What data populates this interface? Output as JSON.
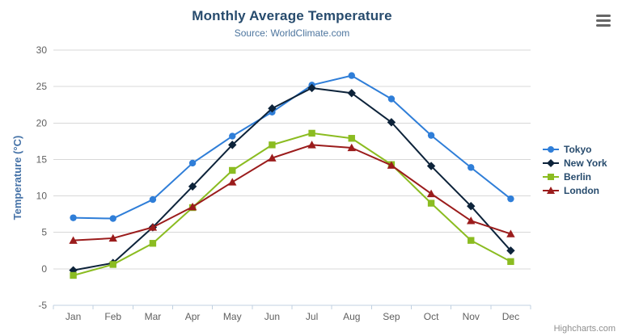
{
  "chart_data": {
    "type": "line",
    "title": "Monthly Average Temperature",
    "subtitle": "Source: WorldClimate.com",
    "xlabel": "",
    "ylabel": "Temperature (°C)",
    "categories": [
      "Jan",
      "Feb",
      "Mar",
      "Apr",
      "May",
      "Jun",
      "Jul",
      "Aug",
      "Sep",
      "Oct",
      "Nov",
      "Dec"
    ],
    "ylim": [
      -5,
      30
    ],
    "yticks": [
      -5,
      0,
      5,
      10,
      15,
      20,
      25,
      30
    ],
    "grid": "horizontal",
    "legend_position": "right",
    "series": [
      {
        "name": "Tokyo",
        "color": "#2f7ed8",
        "marker": "circle",
        "values": [
          7.0,
          6.9,
          9.5,
          14.5,
          18.2,
          21.5,
          25.2,
          26.5,
          23.3,
          18.3,
          13.9,
          9.6
        ]
      },
      {
        "name": "New York",
        "color": "#0d233a",
        "marker": "diamond",
        "values": [
          -0.2,
          0.8,
          5.7,
          11.3,
          17.0,
          22.0,
          24.8,
          24.1,
          20.1,
          14.1,
          8.6,
          2.5
        ]
      },
      {
        "name": "Berlin",
        "color": "#8bbc21",
        "marker": "square",
        "values": [
          -0.9,
          0.6,
          3.5,
          8.4,
          13.5,
          17.0,
          18.6,
          17.9,
          14.3,
          9.0,
          3.9,
          1.0
        ]
      },
      {
        "name": "London",
        "color": "#9b1c1c",
        "marker": "triangle",
        "values": [
          3.9,
          4.2,
          5.7,
          8.5,
          11.9,
          15.2,
          17.0,
          16.6,
          14.2,
          10.3,
          6.6,
          4.8
        ]
      }
    ]
  },
  "theme": {
    "title_color": "#274b6d",
    "subtitle_color": "#4d759e",
    "axis_title_color": "#4572a7",
    "axis_label_color": "#606060",
    "axis_line_color": "#c0d0e0",
    "gridline_color": "#d8d8d8",
    "legend_text_color": "#274b6d",
    "credits_color": "#8f8f8f",
    "menu_icon_color": "#666666",
    "background": "#ffffff"
  },
  "credits": {
    "label": "Highcharts.com"
  }
}
